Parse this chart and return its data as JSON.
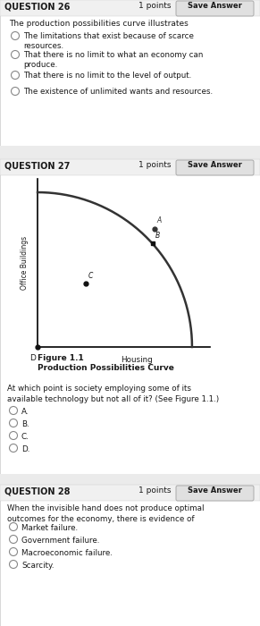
{
  "bg_color": "#ebebeb",
  "panel_bg": "#ffffff",
  "header_bg": "#f0f0f0",
  "border_color": "#cccccc",
  "btn_bg": "#e0e0e0",
  "btn_border": "#aaaaaa",
  "dark_text": "#1a1a1a",
  "radio_fill": "#ffffff",
  "radio_edge": "#888888",
  "q26_title": "QUESTION 26",
  "points_label": "1 points",
  "save_label": "Save Answer",
  "q26_question": "The production possibilities curve illustrates",
  "q26_options": [
    "The limitations that exist because of scarce\nresources.",
    "That there is no limit to what an economy can\nproduce.",
    "That there is no limit to the level of output.",
    "The existence of unlimited wants and resources."
  ],
  "q27_title": "QUESTION 27",
  "fig_title1": "Figure 1.1",
  "fig_title2": "Production Possibilities Curve",
  "q27_question": "At which point is society employing some of its\navailable technology but not all of it? (See Figure 1.1.)",
  "q27_options": [
    "A.",
    "B.",
    "C.",
    "D."
  ],
  "q28_title": "QUESTION 28",
  "q28_question": "When the invisible hand does not produce optimal\noutcomes for the economy, there is evidence of",
  "q28_options": [
    "Market failure.",
    "Government failure.",
    "Macroeconomic failure.",
    "Scarcity."
  ]
}
